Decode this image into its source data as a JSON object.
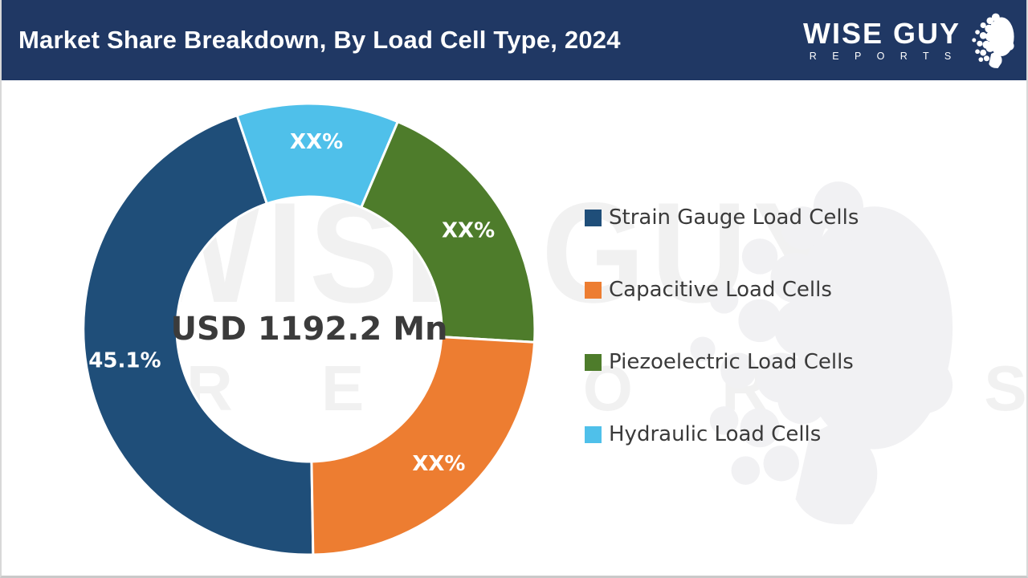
{
  "header": {
    "title": "Market Share Breakdown, By Load Cell Type, 2024",
    "background_color": "#203864",
    "logo": {
      "line1": "WISE GUY",
      "line2": "R E P O R T S"
    }
  },
  "chart_data": {
    "type": "pie",
    "subtype": "donut",
    "title": "Market Share Breakdown, By Load Cell Type, 2024",
    "center_label": "USD 1192.2 Mn",
    "legend_position": "right",
    "start_angle_deg": 89,
    "direction": "clockwise",
    "draw_order": [
      0,
      3,
      2,
      1
    ],
    "segments": [
      {
        "label": "Strain Gauge Load Cells",
        "color": "#1f4e79",
        "value_pct": 45.1,
        "data_label": "45.1%"
      },
      {
        "label": "Capacitive Load Cells",
        "color": "#ed7d31",
        "value_pct": 23.8,
        "data_label": "XX%"
      },
      {
        "label": "Piezoelectric Load Cells",
        "color": "#4e7c2b",
        "value_pct": 19.5,
        "data_label": "XX%"
      },
      {
        "label": "Hydraulic Load Cells",
        "color": "#4fc0ea",
        "value_pct": 11.6,
        "data_label": "XX%"
      }
    ]
  },
  "watermark": {
    "line1": "WISE GUY",
    "line2": "R E P O R T S"
  }
}
